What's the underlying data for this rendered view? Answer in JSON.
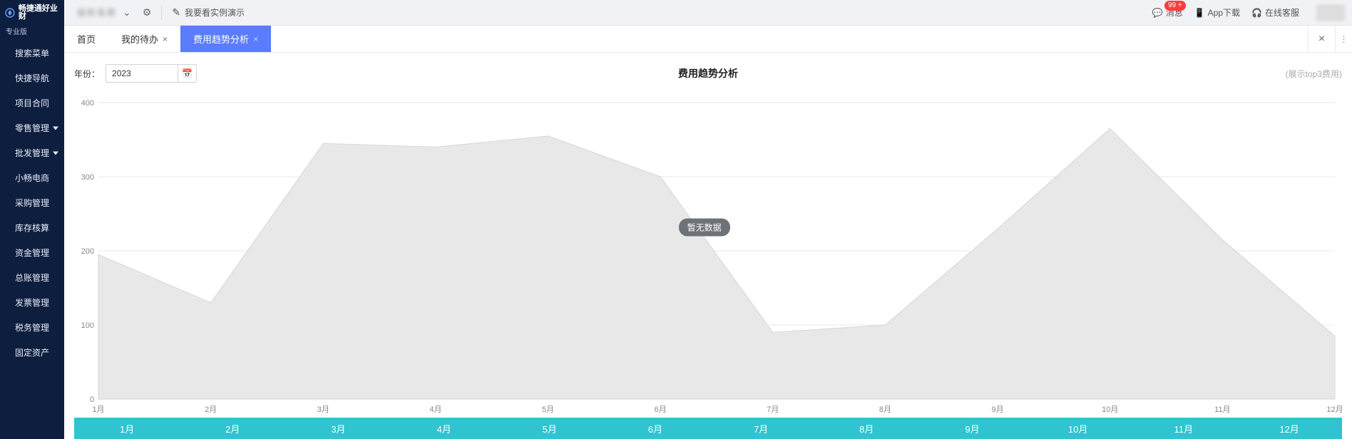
{
  "brand": {
    "name": "畅捷通好业财",
    "edition": "专业版"
  },
  "sidebar": {
    "items": [
      {
        "label": "搜索菜单",
        "hasSub": false
      },
      {
        "label": "快捷导航",
        "hasSub": false
      },
      {
        "label": "项目合同",
        "hasSub": false
      },
      {
        "label": "零售管理",
        "hasSub": true
      },
      {
        "label": "批发管理",
        "hasSub": true
      },
      {
        "label": "小畅电商",
        "hasSub": false
      },
      {
        "label": "采购管理",
        "hasSub": false
      },
      {
        "label": "库存核算",
        "hasSub": false
      },
      {
        "label": "资金管理",
        "hasSub": false
      },
      {
        "label": "总账管理",
        "hasSub": false
      },
      {
        "label": "发票管理",
        "hasSub": false
      },
      {
        "label": "税务管理",
        "hasSub": false
      },
      {
        "label": "固定资产",
        "hasSub": false
      }
    ]
  },
  "topbar": {
    "demo_label": "我要看实例演示",
    "messages_label": "消息",
    "messages_badge": "99 +",
    "app_label": "App下载",
    "support_label": "在线客服"
  },
  "tabs": [
    {
      "label": "首页",
      "closable": false,
      "active": false
    },
    {
      "label": "我的待办",
      "closable": true,
      "active": false
    },
    {
      "label": "费用趋势分析",
      "closable": true,
      "active": true
    }
  ],
  "filter": {
    "year_label": "年份：",
    "year_value": "2023"
  },
  "chart": {
    "title": "费用趋势分析",
    "top3_hint": "(展示top3费用)",
    "no_data_label": "暂无数据",
    "y_ticks": [
      0,
      100,
      200,
      300,
      400
    ],
    "x_labels": [
      "1月",
      "2月",
      "3月",
      "4月",
      "5月",
      "6月",
      "7月",
      "8月",
      "9月",
      "10月",
      "11月",
      "12月"
    ],
    "values": [
      195,
      130,
      345,
      340,
      355,
      300,
      90,
      100,
      230,
      365,
      215,
      85
    ],
    "area_fill": "#e8e8e9",
    "area_stroke": "#d6d7da",
    "grid_color": "#e9eaee",
    "axis_text_color": "#888888",
    "no_data_pill_bg": "#6d7278",
    "ylim": [
      0,
      400
    ]
  },
  "month_strip": {
    "bg": "#2fc4cf",
    "labels": [
      "1月",
      "2月",
      "3月",
      "4月",
      "5月",
      "6月",
      "7月",
      "8月",
      "9月",
      "10月",
      "11月",
      "12月"
    ]
  }
}
